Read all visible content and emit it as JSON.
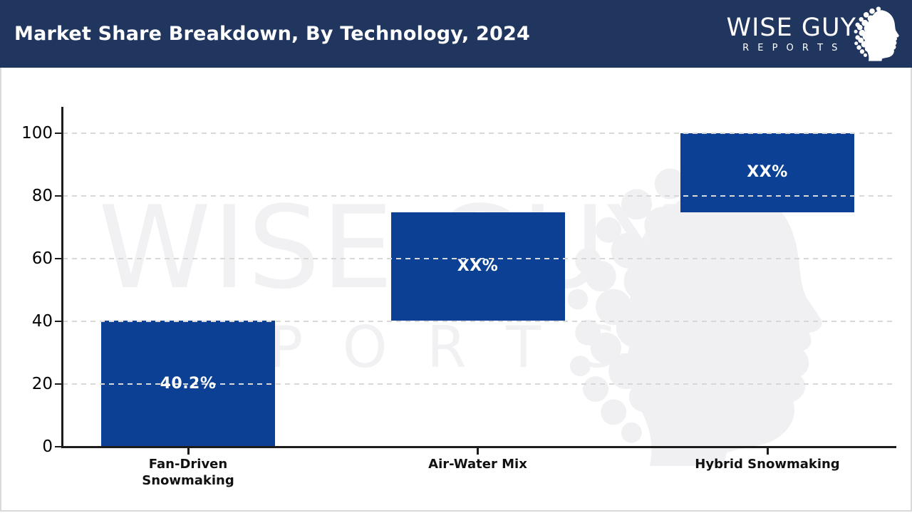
{
  "header": {
    "title": "Market Share Breakdown, By Technology, 2024",
    "logo": {
      "line1": "WISE GUY",
      "line2": "R E P O R T S"
    },
    "bg_color": "#20365f",
    "text_color": "#ffffff"
  },
  "watermark": {
    "line1": "WISE GUY",
    "line2": "R E P O R T S"
  },
  "chart_data": {
    "type": "bar",
    "variant": "stacked-waterfall",
    "title": "Market Share Breakdown, By Technology, 2024",
    "categories": [
      "Fan-Driven Snowmaking",
      "Air-Water Mix",
      "Hybrid Snowmaking"
    ],
    "segments": [
      {
        "category": "Fan-Driven Snowmaking",
        "start": 0,
        "end": 40.2,
        "label": "40.2%"
      },
      {
        "category": "Air-Water Mix",
        "start": 40.2,
        "end": 74.8,
        "label": "XX%"
      },
      {
        "category": "Hybrid Snowmaking",
        "start": 74.8,
        "end": 100,
        "label": "XX%"
      }
    ],
    "values_increment": [
      40.2,
      34.6,
      25.2
    ],
    "yticks": [
      0,
      20,
      40,
      60,
      80,
      100
    ],
    "ylim": [
      0,
      108
    ],
    "xlabel": "",
    "ylabel": "",
    "grid": "horizontal-dashed",
    "grid_color": "#d8d8d8",
    "legend": "none",
    "bar_color": "#0b4094",
    "bar_label_color": "#ffffff",
    "axis_color": "#1c1c1c"
  }
}
